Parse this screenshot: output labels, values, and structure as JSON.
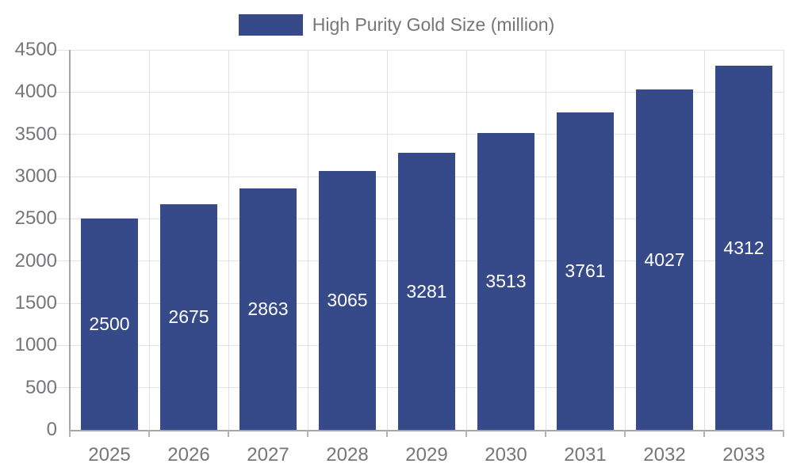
{
  "legend": {
    "label": "High Purity Gold Size (million)"
  },
  "chart_data": {
    "type": "bar",
    "title": "High Purity Gold Size (million)",
    "series_name": "High Purity Gold Size (million)",
    "categories": [
      "2025",
      "2026",
      "2027",
      "2028",
      "2029",
      "2030",
      "2031",
      "2032",
      "2033"
    ],
    "values": [
      2500,
      2675,
      2863,
      3065,
      3281,
      3513,
      3761,
      4027,
      4312
    ],
    "xlabel": "",
    "ylabel": "",
    "ylim": [
      0,
      4500
    ],
    "yticks": [
      0,
      500,
      1000,
      1500,
      2000,
      2500,
      3000,
      3500,
      4000,
      4500
    ],
    "grid": true,
    "legend_position": "top",
    "value_labels": "inside-center"
  },
  "colors": {
    "bar": "#364989",
    "value_label": "#ffffff",
    "axis_line": "#a6a6a6",
    "tick": "#b3b3b3",
    "grid_h": "#e2e2e4",
    "grid_v": "#dfdfe8",
    "text": "#75767a",
    "background": "#ffffff"
  }
}
